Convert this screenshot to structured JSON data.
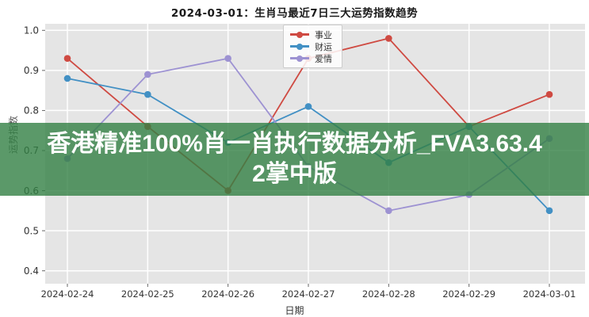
{
  "chart_data": {
    "type": "line",
    "title": "2024-03-01：生肖马最近7日三大运势指数趋势",
    "xlabel": "日期",
    "ylabel": "运势指数",
    "ylim": [
      0.4,
      1.0
    ],
    "yticks": [
      1.0,
      0.9,
      0.8,
      0.7,
      0.6,
      0.5,
      0.4
    ],
    "grid": true,
    "legend_position": "top-center",
    "plot_bg_color": "#e5e5e5",
    "gridline_color": "#ffffff",
    "tick_label_color": "#333333",
    "categories": [
      "2024-02-24",
      "2024-02-25",
      "2024-02-26",
      "2024-02-27",
      "2024-02-28",
      "2024-02-29",
      "2024-03-01"
    ],
    "series": [
      {
        "name": "事业",
        "color": "#cf4a42",
        "values": [
          0.93,
          0.76,
          0.6,
          0.93,
          0.98,
          0.76,
          0.84
        ]
      },
      {
        "name": "财运",
        "color": "#4290c4",
        "values": [
          0.88,
          0.84,
          0.72,
          0.81,
          0.67,
          0.76,
          0.55
        ]
      },
      {
        "name": "爱情",
        "color": "#9d92d2",
        "values": [
          0.68,
          0.89,
          0.93,
          0.66,
          0.55,
          0.59,
          0.73
        ]
      }
    ]
  },
  "watermark": {
    "text": "香港精准100%肖一肖执行数据分析_FVA3.63.42掌中版",
    "lines": [
      "香港精准100%肖一肖执行数据分析_FVA3.63.4",
      "2掌中版"
    ],
    "bg_color": "rgba(50,128,68,0.8)",
    "text_color": "#ffffff"
  }
}
